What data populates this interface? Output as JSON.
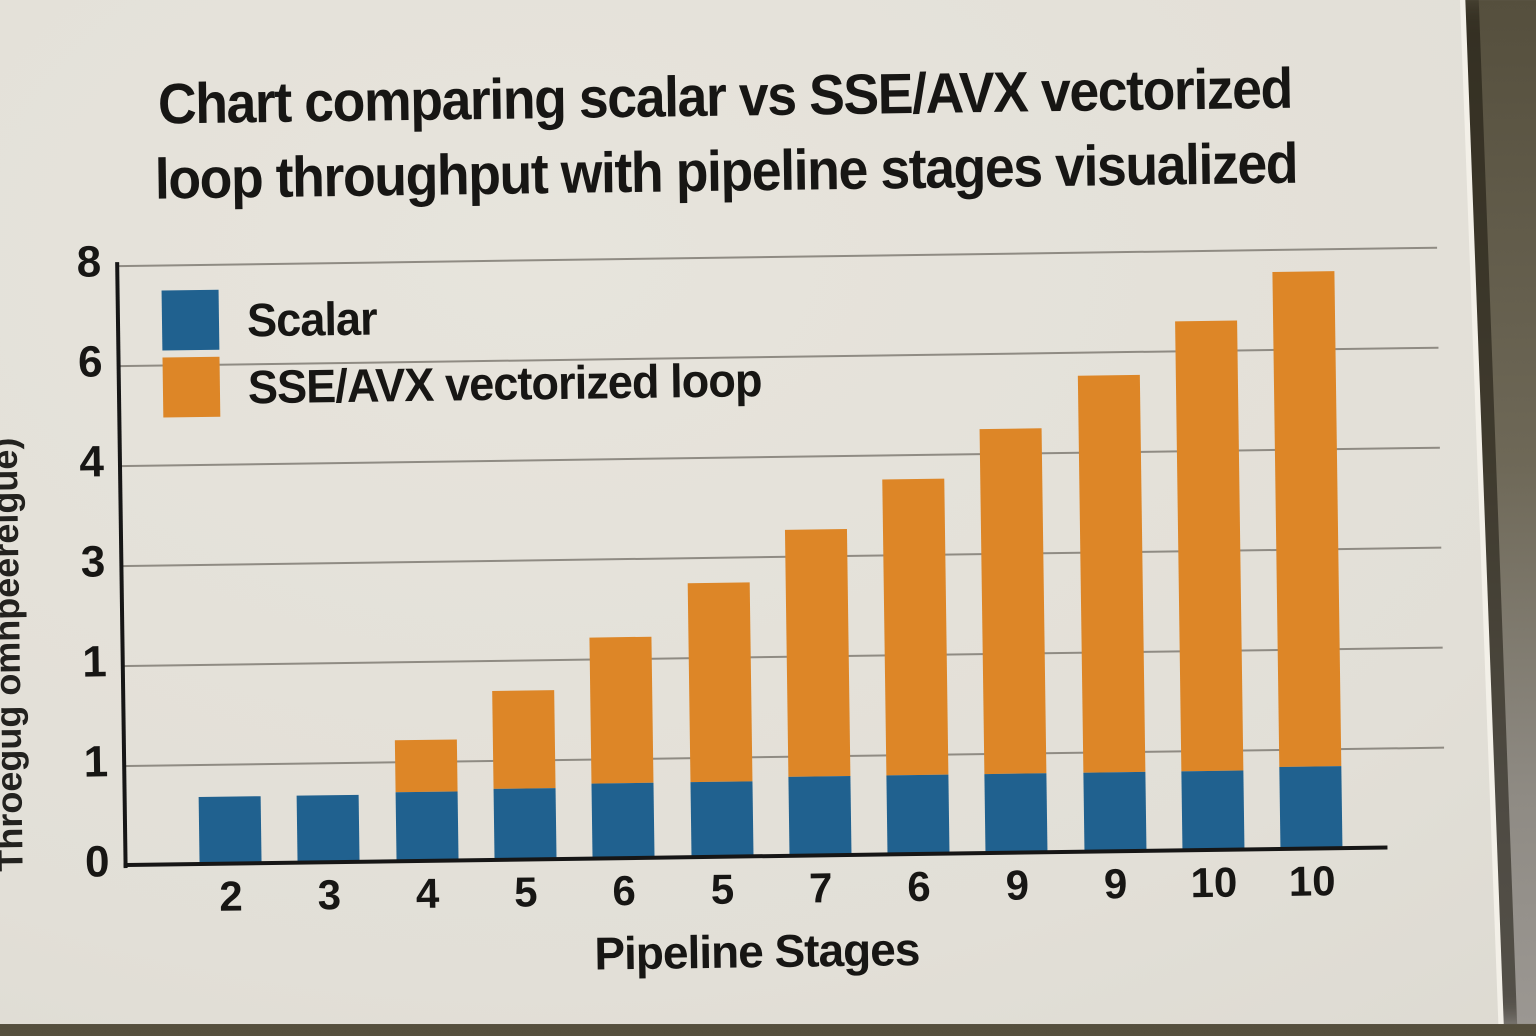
{
  "title": "Chart comparing scalar vs SSE/AVX vectorized loop throughput with pipeline stages visualized",
  "title_line1": "Chart comparing scalar vs SSE/AVX vectorized",
  "title_line2": "loop throughput with pipeline stages visualized",
  "colors": {
    "paper": "#e2dfd7",
    "backdrop_top": "#554f3d",
    "backdrop_bottom": "#9b9792",
    "gridline": "#8f8b83",
    "ink": "#171614",
    "scalar_blue": "#20618f",
    "vector_orange": "#dd8627"
  },
  "chart_data": {
    "type": "bar",
    "stacked": true,
    "title": "Chart comparing scalar vs SSE/AVX vectorized loop throughput with pipeline stages visualized",
    "xlabel": "Pipeline Stages",
    "ylabel": "Throegug omhpeereigue)",
    "categories": [
      "2",
      "3",
      "4",
      "5",
      "6",
      "5",
      "7",
      "6",
      "9",
      "9",
      "10",
      "10"
    ],
    "series": [
      {
        "name": "Scalar",
        "color": "#20618f",
        "values": [
          0.9,
          0.9,
          0.92,
          0.95,
          1.0,
          1.0,
          1.05,
          1.05,
          1.05,
          1.05,
          1.05,
          1.1
        ]
      },
      {
        "name": "SSE/AVX vectorized loop",
        "color": "#dd8627",
        "values": [
          0,
          0,
          0.7,
          1.3,
          1.95,
          2.65,
          3.3,
          3.95,
          4.6,
          5.3,
          6.0,
          6.6
        ]
      }
    ],
    "approx_totals": [
      0.9,
      0.9,
      1.62,
      2.25,
      2.95,
      3.65,
      4.35,
      5.0,
      5.65,
      6.35,
      7.05,
      7.7
    ],
    "ylim": [
      0,
      8
    ],
    "ytick_labels_top_to_bottom": [
      "8",
      "6",
      "4",
      "3",
      "1",
      "1",
      "0"
    ],
    "grid": true,
    "legend_position": "upper-left"
  },
  "legend": {
    "items": [
      {
        "label": "Scalar",
        "color": "#20618f"
      },
      {
        "label": "SSE/AVX vectorized loop",
        "color": "#dd8627"
      }
    ]
  }
}
